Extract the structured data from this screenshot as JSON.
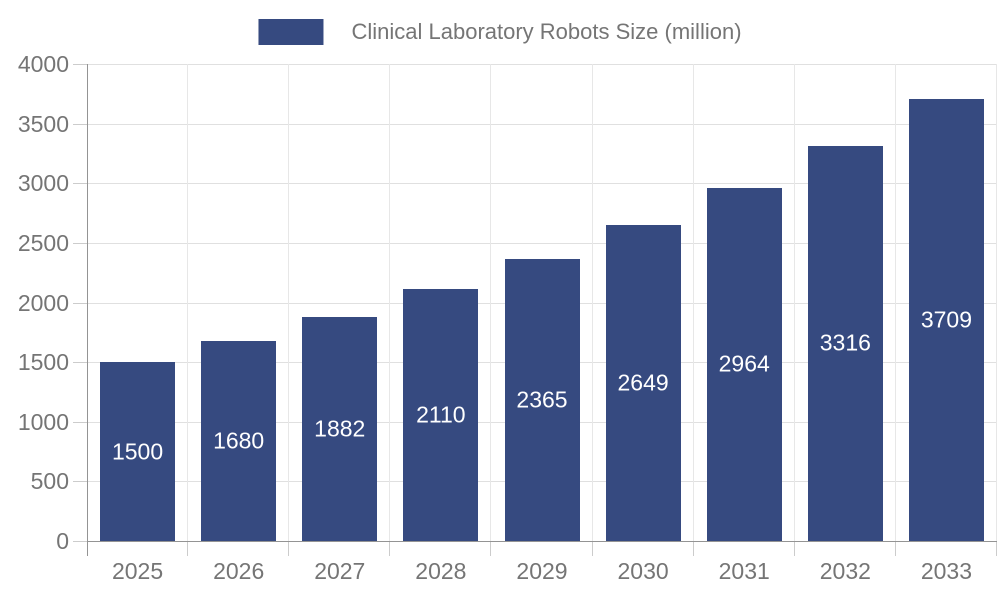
{
  "chart_data": {
    "type": "bar",
    "title": "Clinical Laboratory Robots Size (million)",
    "legend": [
      "Clinical Laboratory Robots Size (million)"
    ],
    "legend_position": "top",
    "categories": [
      "2025",
      "2026",
      "2027",
      "2028",
      "2029",
      "2030",
      "2031",
      "2032",
      "2033"
    ],
    "series": [
      {
        "name": "Clinical Laboratory Robots Size (million)",
        "values": [
          1500,
          1680,
          1882,
          2110,
          2365,
          2649,
          2964,
          3316,
          3709
        ]
      }
    ],
    "value_labels": [
      "1500",
      "1680",
      "1882",
      "2110",
      "2365",
      "2649",
      "2964",
      "3316",
      "3709"
    ],
    "value_label_position": "inside-center",
    "xlabel": "",
    "ylabel": "",
    "ylim": [
      0,
      4000
    ],
    "ytick_interval": 500,
    "ytick_labels": [
      "0",
      "500",
      "1000",
      "1500",
      "2000",
      "2500",
      "3000",
      "3500",
      "4000"
    ],
    "grid": true,
    "colors": {
      "bar": "#364a80",
      "bar_value_text": "#ffffff",
      "axis_text": "#757575",
      "legend_text": "#757575",
      "axis_line": "#949494",
      "tick_line": "#cccccc",
      "hgrid_line": "#e0e0e0",
      "vgrid_line": "#e7e7e7",
      "background": "#ffffff"
    }
  }
}
